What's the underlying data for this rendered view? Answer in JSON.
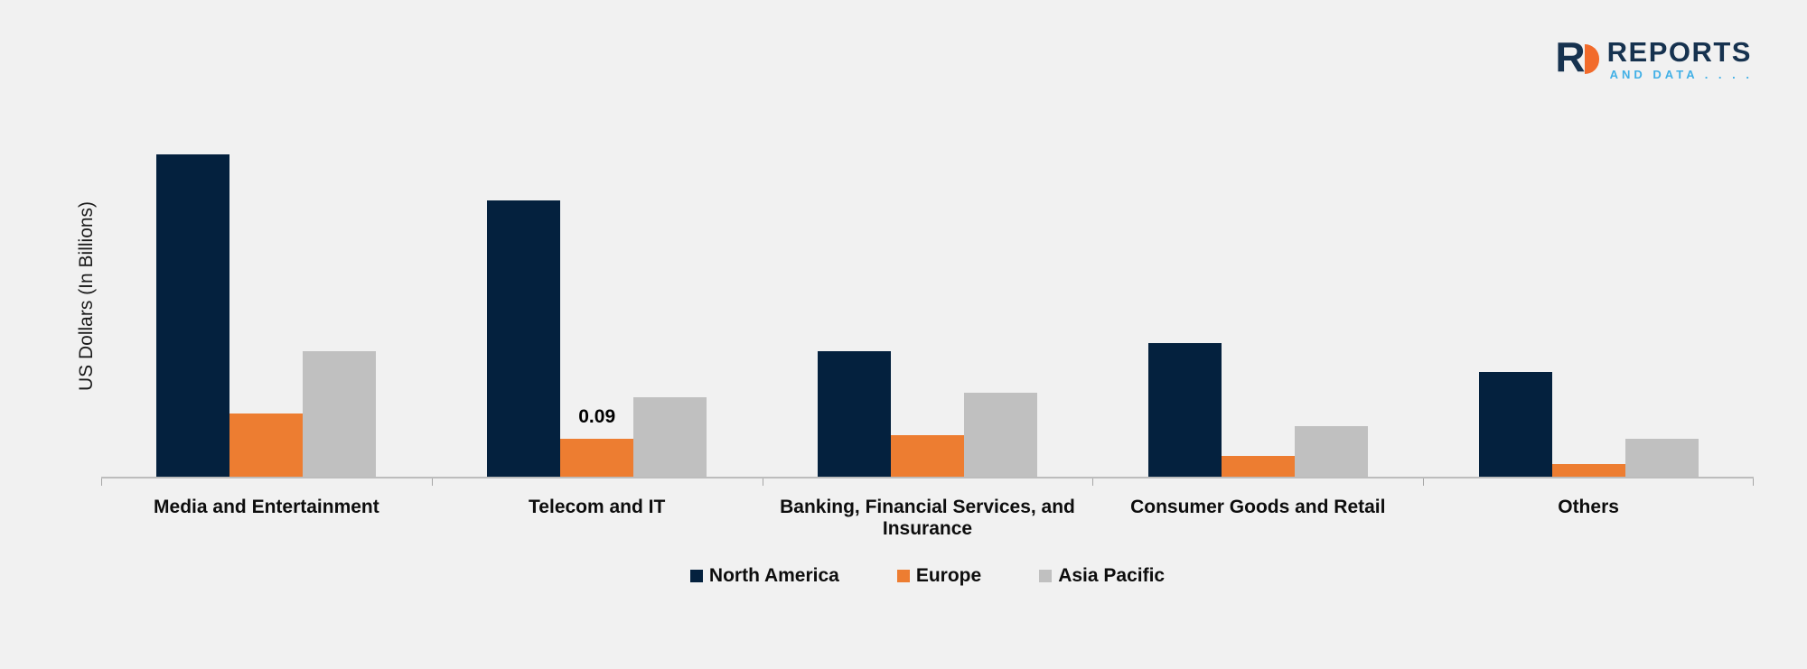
{
  "page": {
    "background_color": "#f1f1f1"
  },
  "logo": {
    "mark_letter": "R",
    "title": "REPORTS",
    "subtitle": "AND DATA . . . .",
    "mark_primary_color": "#16324f",
    "mark_accent_color": "#f26b2b",
    "title_color": "#16324f",
    "subtitle_color": "#41b0e6"
  },
  "chart_data": {
    "type": "bar",
    "title": "",
    "xlabel": "",
    "ylabel": "US Dollars (In Billions)",
    "ylim": [
      0,
      0.88
    ],
    "grid": false,
    "legend_position": "bottom",
    "axis_color": "#bdbdbd",
    "categories": [
      "Media and Entertainment",
      "Telecom and IT",
      "Banking, Financial Services, and Insurance",
      "Consumer Goods and Retail",
      "Others"
    ],
    "series": [
      {
        "name": "North America",
        "color": "#04213e",
        "values": [
          0.77,
          0.66,
          0.3,
          0.32,
          0.25
        ]
      },
      {
        "name": "Europe",
        "color": "#ed7d31",
        "values": [
          0.15,
          0.09,
          0.1,
          0.05,
          0.03
        ]
      },
      {
        "name": "Asia Pacific",
        "color": "#c0c0c0",
        "values": [
          0.3,
          0.19,
          0.2,
          0.12,
          0.09
        ]
      }
    ],
    "data_labels": [
      {
        "series_index": 1,
        "category_index": 1,
        "text": "0.09"
      }
    ]
  }
}
